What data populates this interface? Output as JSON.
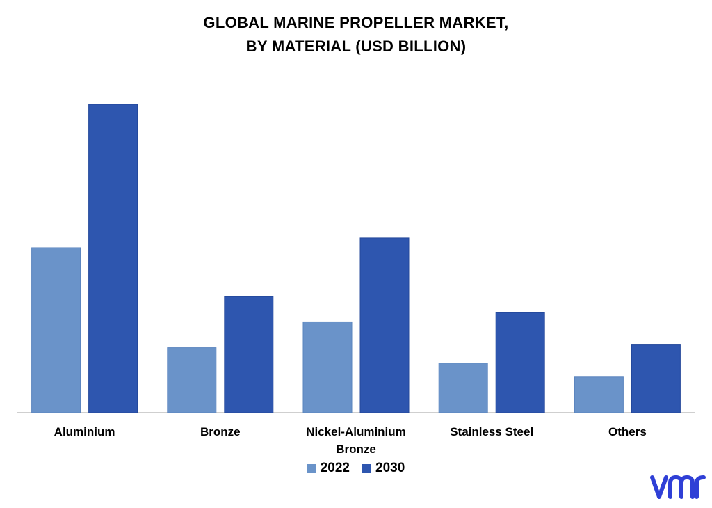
{
  "title_lines": [
    "GLOBAL MARINE PROPELLER MARKET,",
    "BY MATERIAL (USD BILLION)"
  ],
  "chart_data": {
    "type": "bar",
    "title": "GLOBAL MARINE PROPELLER MARKET, BY MATERIAL (USD BILLION)",
    "categories": [
      "Aluminium",
      "Bronze",
      "Nickel-Aluminium Bronze",
      "Stainless Steel",
      "Others"
    ],
    "category_label_lines": [
      [
        "Aluminium"
      ],
      [
        "Bronze"
      ],
      [
        "Nickel-Aluminium",
        "Bronze"
      ],
      [
        "Stainless Steel"
      ],
      [
        "Others"
      ]
    ],
    "series": [
      {
        "name": "2022",
        "color": "#6A93C9",
        "values": [
          2.36,
          0.93,
          1.3,
          0.71,
          0.51
        ]
      },
      {
        "name": "2030",
        "color": "#2E56AF",
        "values": [
          4.41,
          1.66,
          2.5,
          1.43,
          0.97
        ]
      }
    ],
    "ylim": [
      0,
      4.6
    ],
    "y_axis_shown": false,
    "grid": false,
    "legend_position": "bottom"
  },
  "logo_text": "vmr",
  "colors": {
    "logo": "#2F3FD6",
    "axis": "#bfbfbf"
  }
}
